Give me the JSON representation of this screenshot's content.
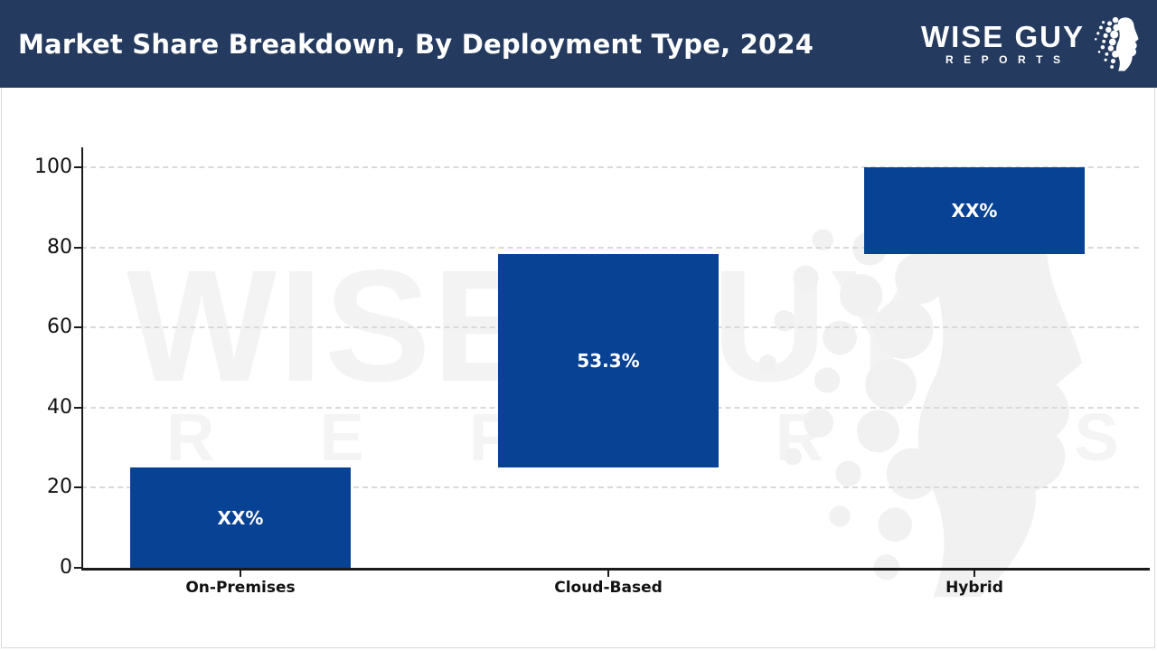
{
  "header": {
    "title": "Market Share Breakdown, By Deployment Type, 2024",
    "logo": {
      "line1": "WISE GUY",
      "line2": "REPORTS"
    }
  },
  "watermark": {
    "line1": "WISE GUY",
    "line2": "REPORTS"
  },
  "colors": {
    "header_bg": "#243a5e",
    "bar": "#084294",
    "bar_label": "#ffffff",
    "grid": "#d9d9d9",
    "axis": "#1a1a1a",
    "watermark": "#f3f3f3"
  },
  "chart_data": {
    "type": "bar",
    "variant": "waterfall",
    "title": "Market Share Breakdown, By Deployment Type, 2024",
    "xlabel": "",
    "ylabel": "",
    "categories": [
      "On-Premises",
      "Cloud-Based",
      "Hybrid"
    ],
    "bars": [
      {
        "category": "On-Premises",
        "start": 0,
        "end": 25,
        "value_label": "XX%"
      },
      {
        "category": "Cloud-Based",
        "start": 25,
        "end": 78.3,
        "value_label": "53.3%"
      },
      {
        "category": "Hybrid",
        "start": 78.3,
        "end": 100,
        "value_label": "XX%"
      }
    ],
    "yticks": [
      0,
      20,
      40,
      60,
      80,
      100
    ],
    "ylim": [
      0,
      105
    ],
    "grid": "horizontal-dashed",
    "legend": "none",
    "bar_color": "#084294"
  }
}
